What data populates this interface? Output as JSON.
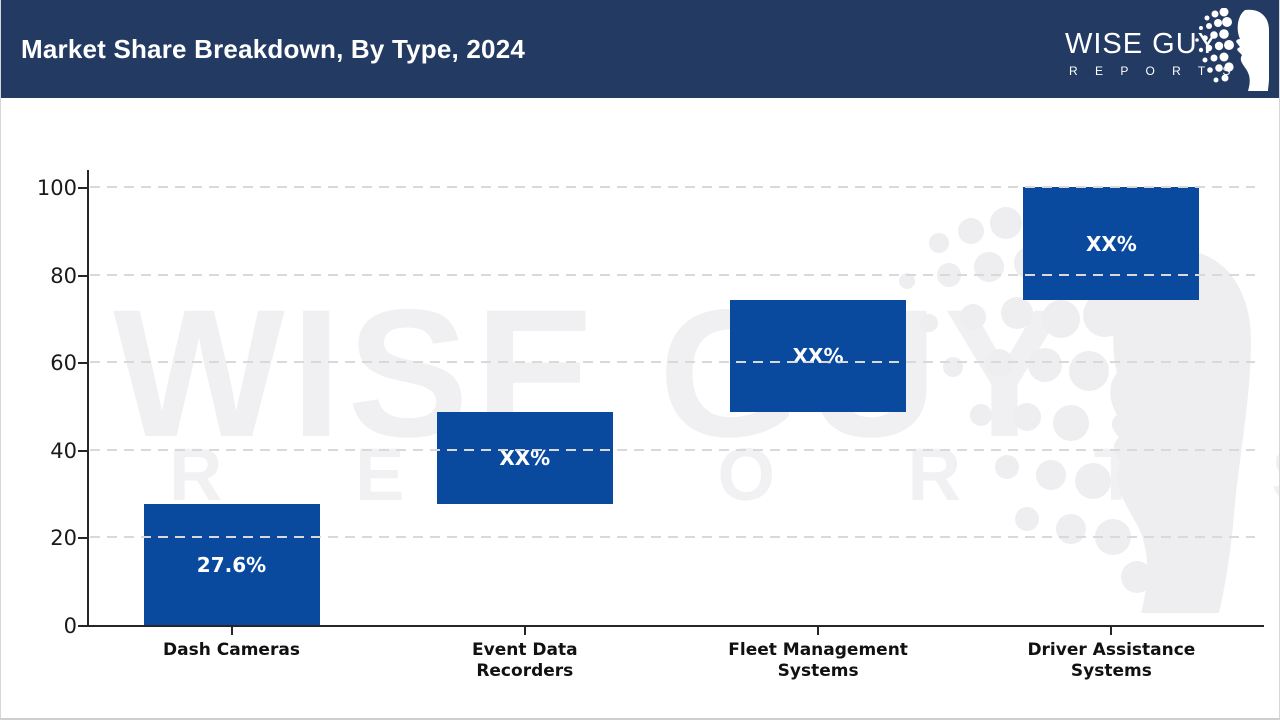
{
  "header": {
    "title": "Market Share Breakdown, By Type, 2024",
    "logo": {
      "wordmark": "WISE GUY",
      "subtext": "R E P O R T S"
    }
  },
  "watermark": {
    "wordmark": "WISE GUY",
    "subtext": "R E P O R T S"
  },
  "chart_data": {
    "type": "bar",
    "subtype": "floating-waterfall",
    "title": "Market Share Breakdown, By Type, 2024",
    "categories": [
      "Dash Cameras",
      "Event Data Recorders",
      "Fleet Management Systems",
      "Driver Assistance Systems"
    ],
    "category_label_lines": [
      [
        "Dash Cameras"
      ],
      [
        "Event Data",
        "Recorders"
      ],
      [
        "Fleet Management",
        "Systems"
      ],
      [
        "Driver Assistance",
        "Systems"
      ]
    ],
    "series": [
      {
        "name": "Market share",
        "segments": [
          {
            "category": "Dash Cameras",
            "start": 0,
            "end": 27.6,
            "label": "27.6%"
          },
          {
            "category": "Event Data Recorders",
            "start": 27.6,
            "end": 48.6,
            "label": "XX%"
          },
          {
            "category": "Fleet Management Systems",
            "start": 48.6,
            "end": 74.2,
            "label": "XX%"
          },
          {
            "category": "Driver Assistance Systems",
            "start": 74.2,
            "end": 100,
            "label": "XX%"
          }
        ]
      }
    ],
    "yticks": [
      "0",
      "20",
      "40",
      "60",
      "80",
      "100"
    ],
    "ylim": [
      0,
      104
    ],
    "xlabel": "",
    "ylabel": "",
    "grid": "horizontal dashed",
    "legend": "none",
    "colors": {
      "bar": "#0a4a9e",
      "bar_label": "#ffffff",
      "grid": "#d9d9d9",
      "axis": "#262626",
      "tick_text": "#1a1a1a",
      "header_bg": "#233a63",
      "watermark": "#f0f0f2"
    }
  }
}
